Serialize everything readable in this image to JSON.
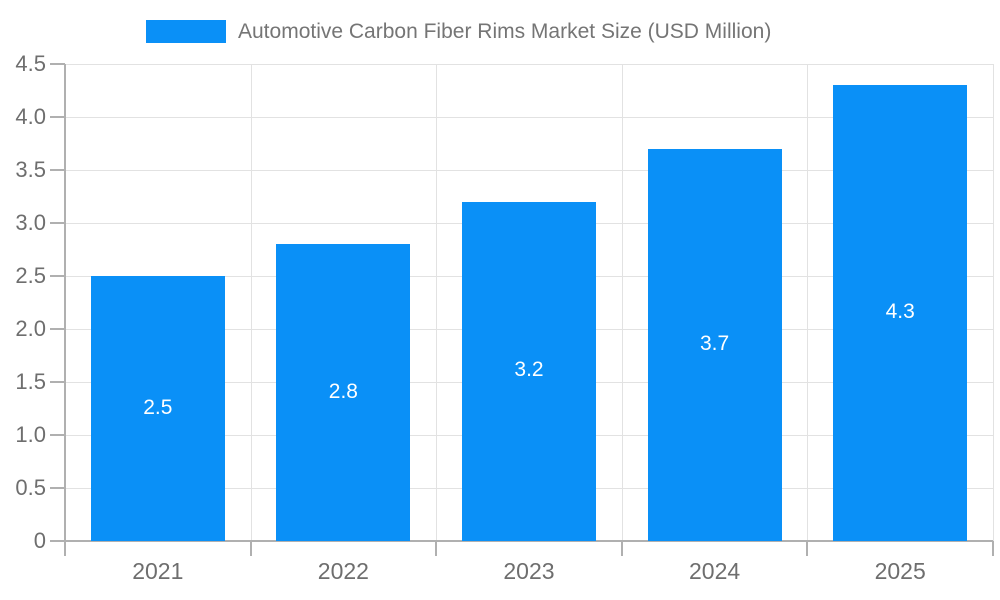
{
  "chart_data": {
    "type": "bar",
    "title": "Automotive Carbon Fiber Rims Market Size (USD Million)",
    "categories": [
      "2021",
      "2022",
      "2023",
      "2024",
      "2025"
    ],
    "values": [
      2.5,
      2.8,
      3.2,
      3.7,
      4.3
    ],
    "bar_labels": [
      "2.5",
      "2.8",
      "3.2",
      "3.7",
      "4.3"
    ],
    "xlabel": "",
    "ylabel": "",
    "ylim": [
      0,
      4.5
    ],
    "ytick_step": 0.5,
    "ytick_labels": [
      "0",
      "0.5",
      "1.0",
      "1.5",
      "2.0",
      "2.5",
      "3.0",
      "3.5",
      "4.0",
      "4.5"
    ],
    "grid": true,
    "legend_position": "top",
    "colors": {
      "bar": "#0a90f7",
      "grid": "#e2e2e2",
      "axis": "#b0b0b0",
      "tick_label": "#6e6e6e",
      "title": "#757575",
      "bar_label": "#ffffff",
      "background": "#ffffff"
    }
  }
}
